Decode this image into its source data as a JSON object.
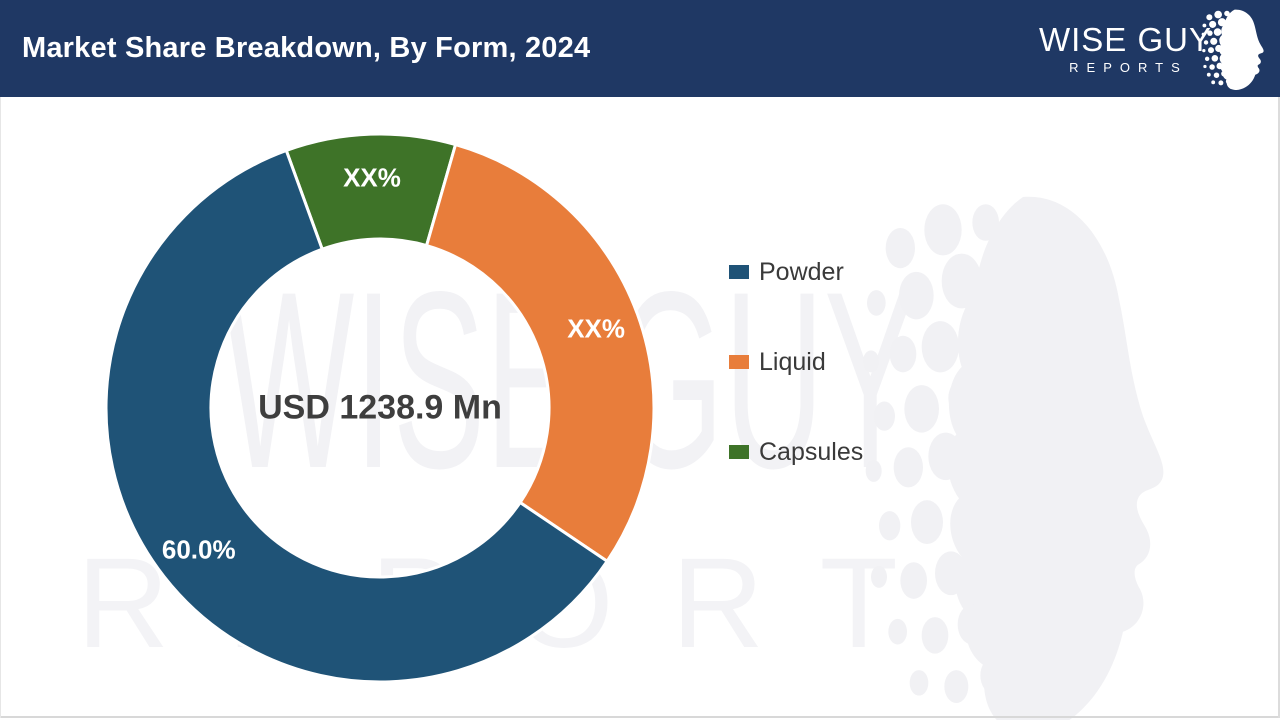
{
  "header": {
    "title": "Market Share Breakdown, By Form, 2024",
    "background_color": "#1f3864",
    "logo": {
      "line1": "WISE GUY",
      "line2": "REPORTS"
    }
  },
  "chart_data": {
    "type": "pie",
    "subtype": "donut",
    "title": "Market Share Breakdown, By Form, 2024",
    "center_label": "USD 1238.9 Mn",
    "start_angle_deg": -20,
    "direction": "clockwise",
    "legend_position": "right",
    "segments": [
      {
        "label": "Powder",
        "value_pct": 60,
        "display_value": "60.0%",
        "color": "#1f5377"
      },
      {
        "label": "Liquid",
        "value_pct": 30,
        "display_value": "XX%",
        "color": "#e87d3b"
      },
      {
        "label": "Capsules",
        "value_pct": 10,
        "display_value": "XX%",
        "color": "#3e7328"
      }
    ]
  },
  "watermark": {
    "line1": "WISE GUY",
    "line2": "REPORTS"
  }
}
